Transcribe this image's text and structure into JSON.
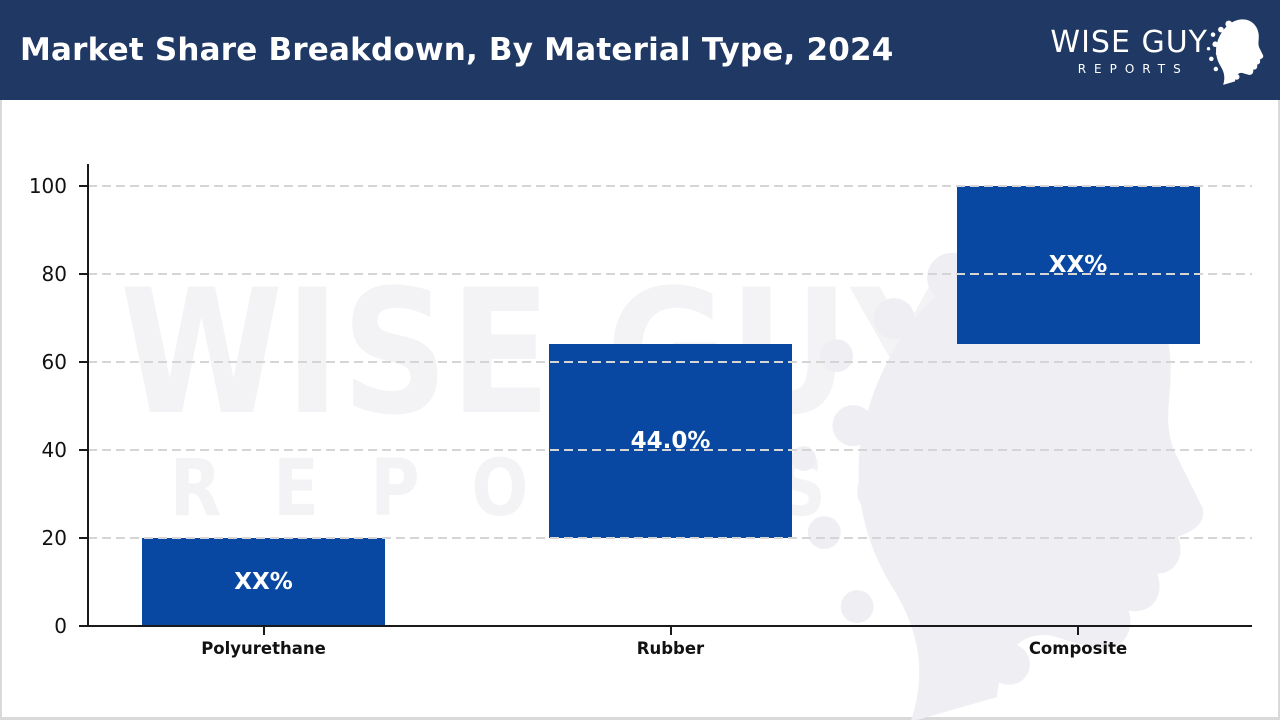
{
  "header": {
    "title": "Market Share Breakdown, By Material Type, 2024",
    "logo": {
      "line1": "WISE GUY",
      "line2": "REPORTS"
    },
    "bg_color": "#1f3864"
  },
  "watermark": {
    "line1": "WISE GUY",
    "line2": "REPORTS"
  },
  "chart_data": {
    "type": "bar",
    "subtype": "floating_segment_waterfall",
    "title": "Market Share Breakdown, By Material Type, 2024",
    "categories": [
      "Polyurethane",
      "Rubber",
      "Composite"
    ],
    "segments": [
      {
        "category": "Polyurethane",
        "start": 0,
        "end": 20,
        "label": "XX%"
      },
      {
        "category": "Rubber",
        "start": 20,
        "end": 64,
        "label": "44.0%"
      },
      {
        "category": "Composite",
        "start": 64,
        "end": 100,
        "label": "XX%"
      }
    ],
    "xlabel": "",
    "ylabel": "",
    "y_ticks": [
      0,
      20,
      40,
      60,
      80,
      100
    ],
    "ylim": [
      0,
      105
    ],
    "grid": {
      "axis": "y",
      "style": "dashed",
      "color": "#d5d5d5",
      "above_bars": true
    },
    "bar_color": "#0948a2",
    "bar_label_color": "#ffffff",
    "axis_color": "#1a1a1a",
    "legend": null
  }
}
